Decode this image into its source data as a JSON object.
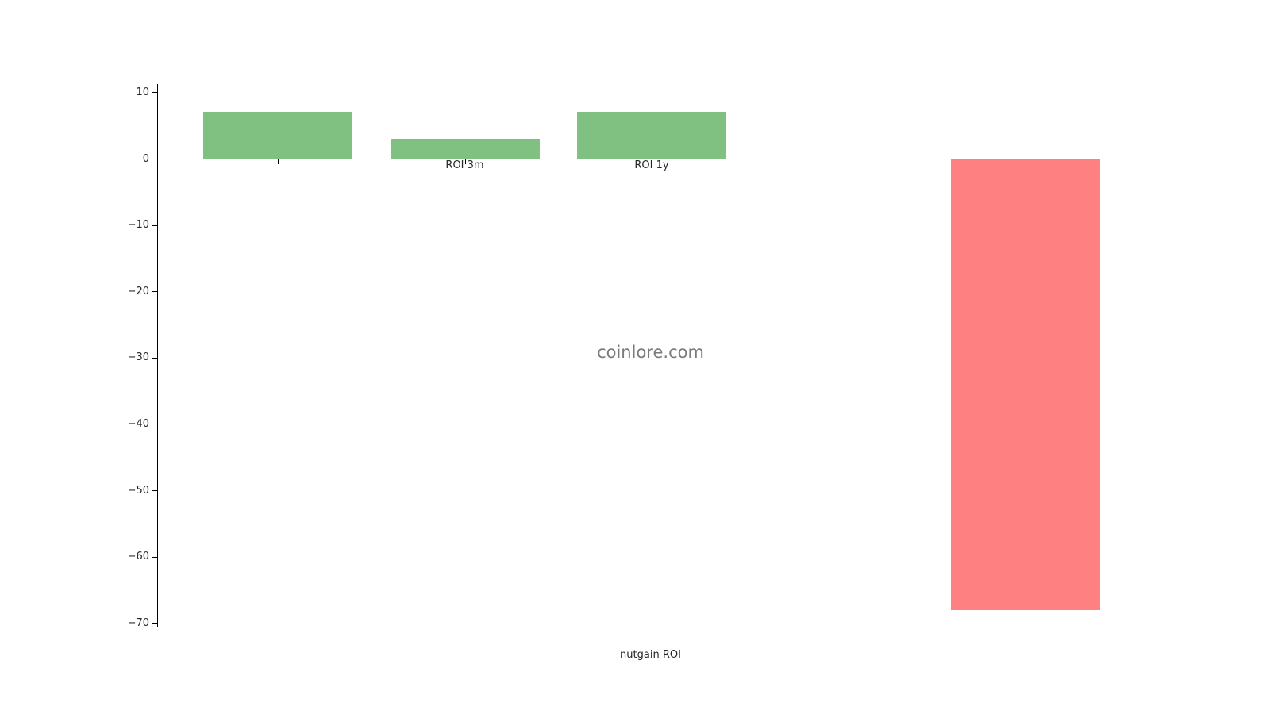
{
  "page": {
    "background": "#ffffff"
  },
  "watermark": {
    "text": "coinlore.com",
    "color": "#7a7a7a"
  },
  "chart_data": {
    "type": "bar",
    "title": "",
    "xlabel": "nutgain ROI",
    "ylabel": "",
    "categories": [
      "",
      "ROI 3m",
      "ROI 1y",
      "",
      ""
    ],
    "values": [
      7,
      3,
      7,
      0,
      -68
    ],
    "bar_colors": [
      "#80c080",
      "#80c080",
      "#80c080",
      null,
      "#ff8080"
    ],
    "positive_color": "#80c080",
    "negative_color": "#ff8080",
    "ylim": [
      -70,
      10
    ],
    "yticks": [
      10,
      0,
      -10,
      -20,
      -30,
      -40,
      -50,
      -60,
      -70
    ],
    "ytick_labels": [
      "10",
      "0",
      "−10",
      "−20",
      "−30",
      "−40",
      "−50",
      "−60",
      "−70"
    ],
    "xtick_slots": [
      0,
      1,
      2
    ],
    "grid": false,
    "legend": null
  }
}
